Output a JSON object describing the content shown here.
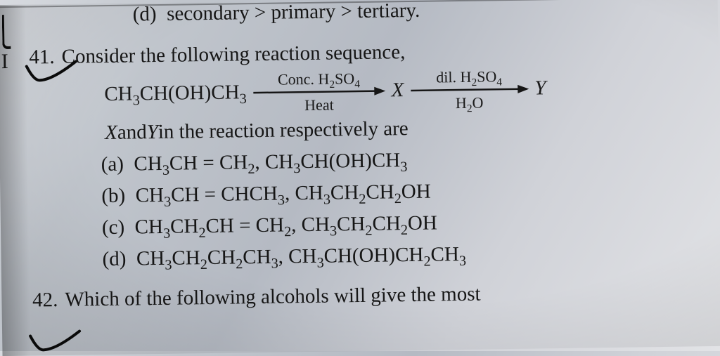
{
  "prev_option_d": {
    "letter": "(d)",
    "text": "secondary > primary > tertiary."
  },
  "q41": {
    "number": "41.",
    "stem": "Consider the following reaction sequence,",
    "reactant": "CH<sub>3</sub>CH(OH)CH<sub>3</sub>",
    "arrow1_top": "Conc. H<sub>2</sub>SO<sub>4</sub>",
    "arrow1_bottom": "Heat",
    "intermediate": "X",
    "arrow2_top": "dil. H<sub>2</sub>SO<sub>4</sub>",
    "arrow2_bottom": "H<sub>2</sub>O",
    "product": "Y",
    "stem2_prefix": "X",
    "stem2_mid": " and ",
    "stem2_y": "Y",
    "stem2_rest": " in the reaction respectively are",
    "options": {
      "a": {
        "letter": "(a)",
        "text": "CH<sub>3</sub>CH = CH<sub>2</sub>, CH<sub>3</sub>CH(OH)CH<sub>3</sub>"
      },
      "b": {
        "letter": "(b)",
        "text": "CH<sub>3</sub>CH = CHCH<sub>3</sub>, CH<sub>3</sub>CH<sub>2</sub>CH<sub>2</sub>OH"
      },
      "c": {
        "letter": "(c)",
        "text": "CH<sub>3</sub>CH<sub>2</sub>CH = CH<sub>2</sub>, CH<sub>3</sub>CH<sub>2</sub>CH<sub>2</sub>OH"
      },
      "d": {
        "letter": "(d)",
        "text": "CH<sub>3</sub>CH<sub>2</sub>CH<sub>2</sub>CH<sub>3</sub>, CH<sub>3</sub>CH(OH)CH<sub>2</sub>CH<sub>3</sub>"
      }
    }
  },
  "q42": {
    "number": "42.",
    "stem": "Which of the following alcohols will give the most"
  },
  "style": {
    "text_color": "#161616",
    "arrow_color": "#161616",
    "checkmark_color": "#0b0b0b"
  }
}
